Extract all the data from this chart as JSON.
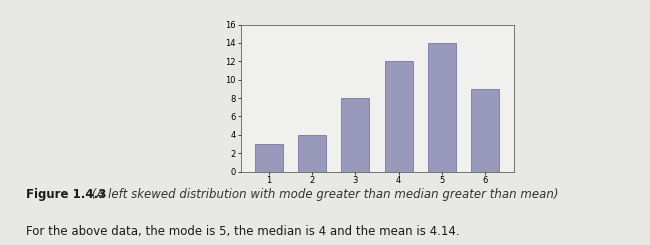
{
  "categories": [
    1,
    2,
    3,
    4,
    5,
    6
  ],
  "values": [
    3,
    4,
    8,
    12,
    14,
    9
  ],
  "bar_color": "#9999bb",
  "bar_edgecolor": "#7777aa",
  "title_bold": "Figure 1.4.3",
  "title_italic": " (A left skewed distribution with mode greater than median greater than mean)",
  "caption": "For the above data, the mode is 5, the median is 4 and the mean is 4.14.",
  "ylim": [
    0,
    16
  ],
  "yticks": [
    0,
    2,
    4,
    6,
    8,
    10,
    12,
    14,
    16
  ],
  "xticks": [
    1,
    2,
    3,
    4,
    5,
    6
  ],
  "background_color": "#f0f0ee",
  "fig_background": "#e8e8e4",
  "tick_fontsize": 6,
  "label_fontsize": 8.5,
  "caption_fontsize": 8.5
}
